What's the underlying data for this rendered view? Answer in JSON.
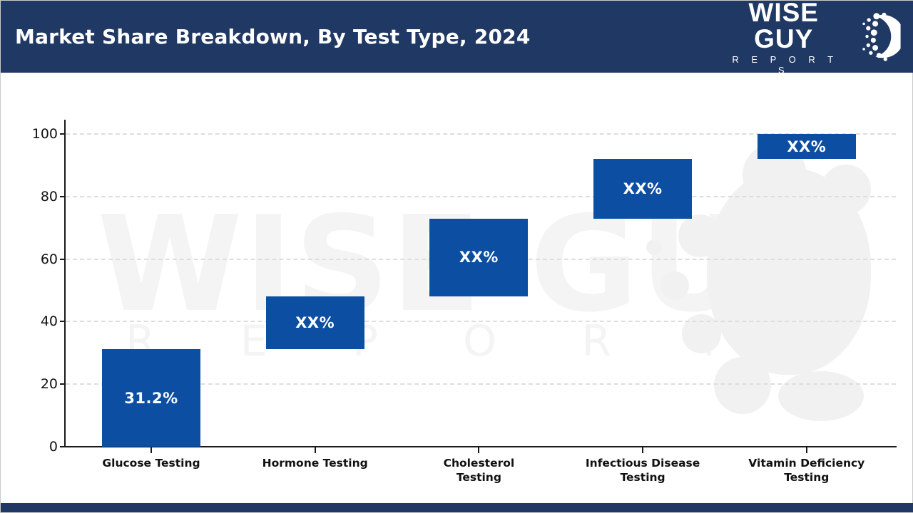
{
  "header": {
    "title": "Market Share Breakdown, By Test Type, 2024",
    "logo": {
      "line1": "WISE GUY",
      "line2": "R E P O R T S"
    }
  },
  "watermark": {
    "line1": "WISE GUY",
    "line2": "R E P O R T S"
  },
  "colors": {
    "header_bg": "#203864",
    "footer_bg": "#203864",
    "bar": "#0b4ea2",
    "bar_label": "#ffffff",
    "gridline": "#dedede",
    "axis": "#1a1a1a",
    "watermark": "#f4f4f4"
  },
  "chart_data": {
    "type": "bar",
    "subtype": "waterfall",
    "title": "Market Share Breakdown, By Test Type, 2024",
    "xlabel": "",
    "ylabel": "",
    "categories": [
      "Glucose Testing",
      "Hormone Testing",
      "Cholesterol\nTesting",
      "Infectious Disease\nTesting",
      "Vitamin Deficiency\nTesting"
    ],
    "segments": [
      {
        "category": "Glucose Testing",
        "start": 0,
        "end": 31.2,
        "label": "31.2%"
      },
      {
        "category": "Hormone Testing",
        "start": 31.2,
        "end": 48,
        "label": "XX%"
      },
      {
        "category": "Cholesterol Testing",
        "start": 48,
        "end": 73,
        "label": "XX%"
      },
      {
        "category": "Infectious Disease Testing",
        "start": 73,
        "end": 92,
        "label": "XX%"
      },
      {
        "category": "Vitamin Deficiency Testing",
        "start": 92,
        "end": 100,
        "label": "XX%"
      }
    ],
    "yticks": [
      0,
      20,
      40,
      60,
      80,
      100
    ],
    "ylim": [
      0,
      105
    ],
    "grid": "horizontal-dashed",
    "legend": "none",
    "bar_color": "#0b4ea2",
    "value_label_color": "#ffffff"
  }
}
